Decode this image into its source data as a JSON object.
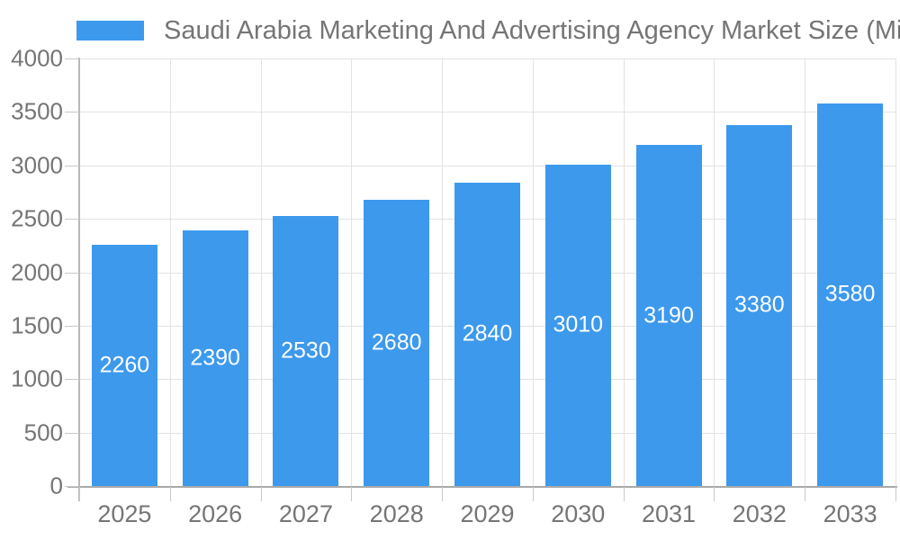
{
  "chart_data": {
    "type": "bar",
    "title": "Saudi Arabia Marketing And Advertising Agency Market Size (Million)",
    "categories": [
      "2025",
      "2026",
      "2027",
      "2028",
      "2029",
      "2030",
      "2031",
      "2032",
      "2033"
    ],
    "values": [
      2260,
      2390,
      2530,
      2680,
      2840,
      3010,
      3190,
      3380,
      3580
    ],
    "xlabel": "",
    "ylabel": "",
    "ylim": [
      0,
      4000
    ],
    "ytick_step": 500,
    "ytick_labels": [
      "0",
      "500",
      "1000",
      "1500",
      "2000",
      "2500",
      "3000",
      "3500",
      "4000"
    ],
    "grid": true,
    "legend_position": "top-left",
    "bar_color": "#3D99EC",
    "bar_label_color": "#FFFFFF",
    "axis_text_color": "#757575",
    "gridline_color": "#E2E2E2",
    "axis_line_color": "#A9A9A9"
  }
}
